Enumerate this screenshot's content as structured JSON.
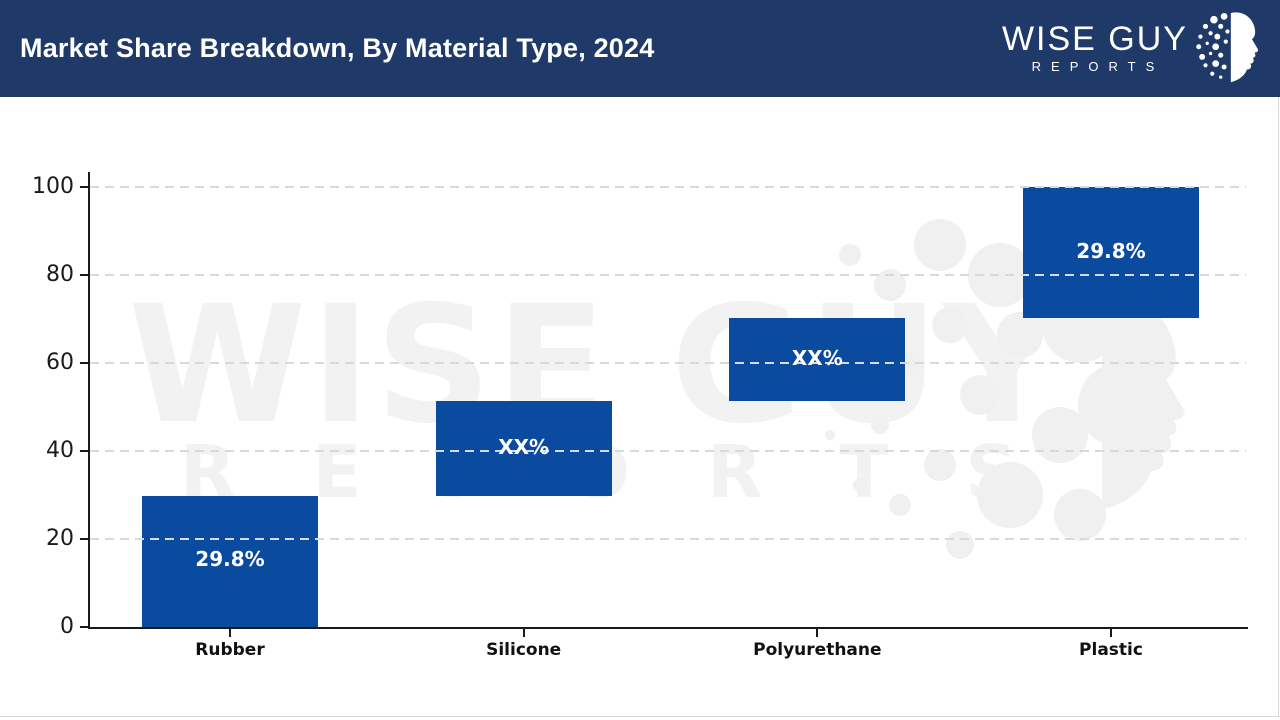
{
  "header": {
    "bg_color": "#1F3A68",
    "title": "Market Share Breakdown, By Material Type, 2024",
    "logo": {
      "name": "WISE GUY",
      "sub": "REPORTS"
    }
  },
  "watermark": {
    "name": "WISE GUY",
    "sub": "R E P O R T S"
  },
  "chart_data": {
    "type": "bar",
    "variant": "waterfall-floating-bars",
    "title": "Market Share Breakdown, By Material Type, 2024",
    "categories": [
      "Rubber",
      "Silicone",
      "Polyurethane",
      "Plastic"
    ],
    "segments": [
      {
        "category": "Rubber",
        "start": 0,
        "end": 29.8,
        "label": "29.8%"
      },
      {
        "category": "Silicone",
        "start": 29.8,
        "end": 51.3,
        "label": "XX%"
      },
      {
        "category": "Polyurethane",
        "start": 51.3,
        "end": 70.2,
        "label": "XX%"
      },
      {
        "category": "Plastic",
        "start": 70.2,
        "end": 100,
        "label": "29.8%"
      }
    ],
    "yticks": [
      0,
      20,
      40,
      60,
      80,
      100
    ],
    "ylim": [
      0,
      100
    ],
    "xlabel": "",
    "ylabel": "",
    "grid": "horizontal-dashed-above-bars",
    "legend": "none",
    "bar_color": "#0B4B9F",
    "bar_label_color": "#FFFFFF",
    "axis_color": "#1A1A1A",
    "gridline_color": "#D9D9D9"
  }
}
